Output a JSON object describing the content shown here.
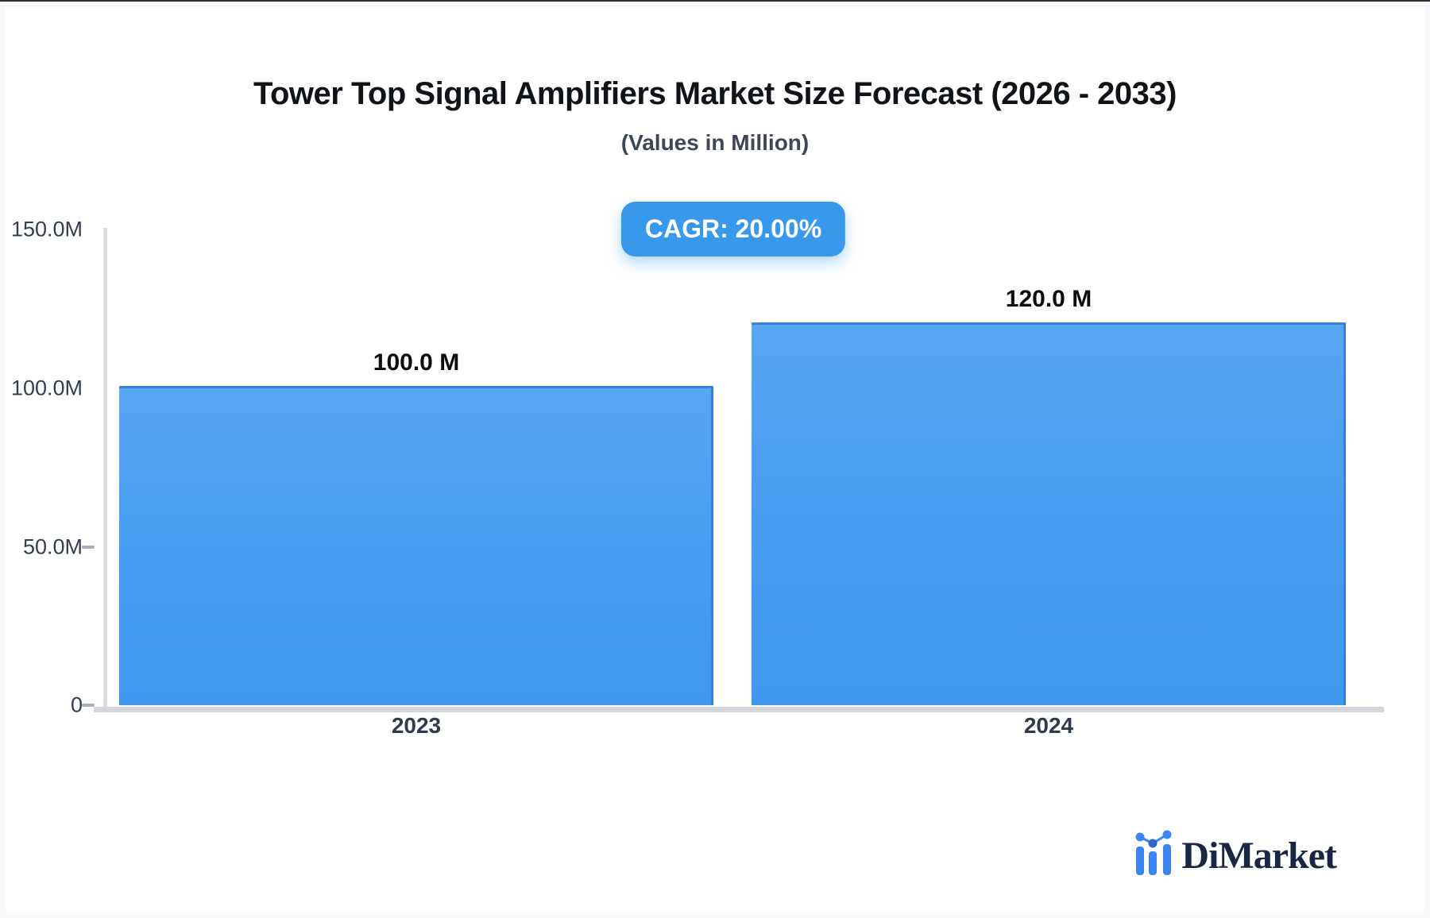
{
  "title": "Tower Top Signal Amplifiers Market Size Forecast (2026 - 2033)",
  "subtitle": "(Values in Million)",
  "cagr_badge_label": "CAGR: 20.00%",
  "brand": {
    "name": "DiMarket"
  },
  "colors": {
    "badge_background": "#3898ec",
    "bar_fill_top": "#58a6f2",
    "bar_fill_bottom": "#3f97ef",
    "bar_border": "#3a80d5",
    "axis_line": "#d2d5da",
    "brand_blue": "#3d85f0",
    "brand_navy": "#1a2742"
  },
  "chart_data": {
    "type": "bar",
    "title": "Tower Top Signal Amplifiers Market Size Forecast (2026 - 2033)",
    "subtitle": "(Values in Million)",
    "unit": "Million",
    "cagr_percent": 20.0,
    "categories": [
      "2023",
      "2024"
    ],
    "values": [
      100.0,
      120.0
    ],
    "bar_labels": [
      "100.0 M",
      "120.0 M"
    ],
    "y_tick_labels": [
      "150.0M",
      "100.0M",
      "50.0M",
      "0"
    ],
    "y_tick_values": [
      150,
      100,
      50,
      0
    ],
    "ylim": [
      0,
      150
    ],
    "grid": false,
    "legend": "none"
  }
}
